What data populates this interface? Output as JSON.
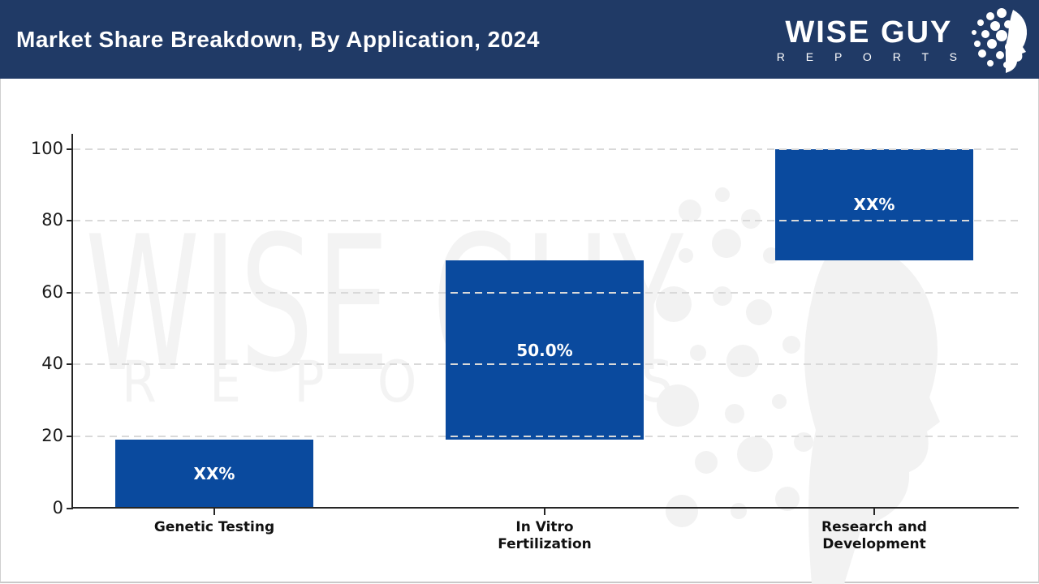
{
  "header": {
    "title": "Market Share Breakdown, By Application, 2024",
    "bg_color": "#203a66",
    "logo": {
      "line1": "WISE GUY",
      "line2": "R E P O R T S"
    }
  },
  "watermark": {
    "line1": "WISE GUY",
    "line2": "R E P O R T S"
  },
  "chart_data": {
    "type": "bar",
    "subtype": "waterfall",
    "title": "Market Share Breakdown, By Application, 2024",
    "categories": [
      "Genetic Testing",
      "In Vitro\nFertilization",
      "Research and\nDevelopment"
    ],
    "segments": [
      {
        "category": "Genetic Testing",
        "start": 0,
        "end": 19,
        "value_label": "XX%"
      },
      {
        "category": "In Vitro Fertilization",
        "start": 19,
        "end": 69,
        "value_label": "50.0%"
      },
      {
        "category": "Research and Development",
        "start": 69,
        "end": 100,
        "value_label": "XX%"
      }
    ],
    "y_ticks": [
      0,
      20,
      40,
      60,
      80,
      100
    ],
    "ylim": [
      0,
      104
    ],
    "xlabel": "",
    "ylabel": "",
    "legend": "none",
    "grid": "horizontal-dashed",
    "gridlines_above_bars": true,
    "bar_color": "#0a4a9e",
    "axis_color": "#262626",
    "grid_color": "#d9d9d9"
  }
}
